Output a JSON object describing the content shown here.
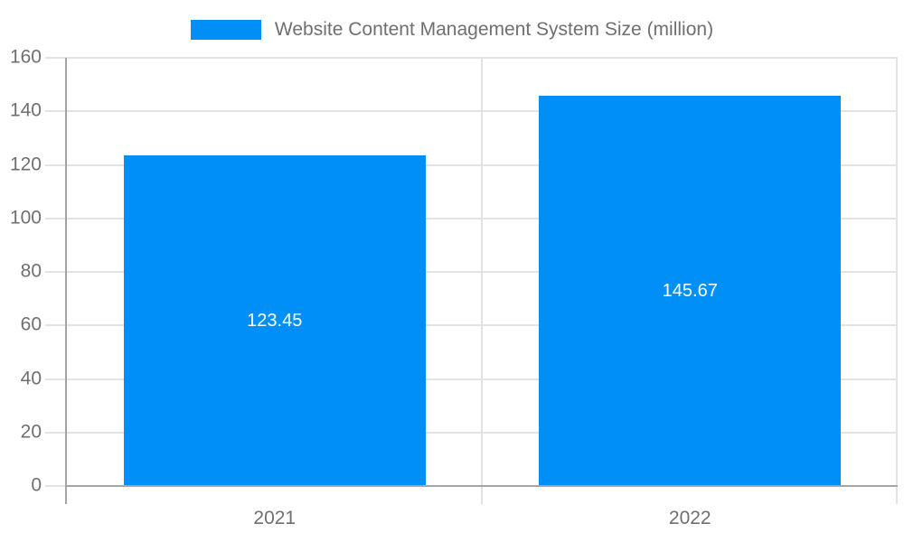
{
  "chart_data": {
    "type": "bar",
    "title": "Website Content Management System Size (million)",
    "categories": [
      "2021",
      "2022"
    ],
    "values": [
      123.45,
      145.67
    ],
    "value_labels": [
      "123.45",
      "145.67"
    ],
    "xlabel": "",
    "ylabel": "",
    "ylim": [
      0,
      160
    ],
    "yticks": [
      0,
      20,
      40,
      60,
      80,
      100,
      120,
      140,
      160
    ],
    "grid": true,
    "legend_position": "top-center",
    "bar_width_fraction": 0.726,
    "colors": {
      "bar": "#008FF7",
      "grid": "#E3E3E3",
      "axis": "#A5A5A5",
      "tick_text": "#6F6F6F",
      "value_label_text": "#FFFFFF",
      "background": "#FFFFFF"
    }
  }
}
